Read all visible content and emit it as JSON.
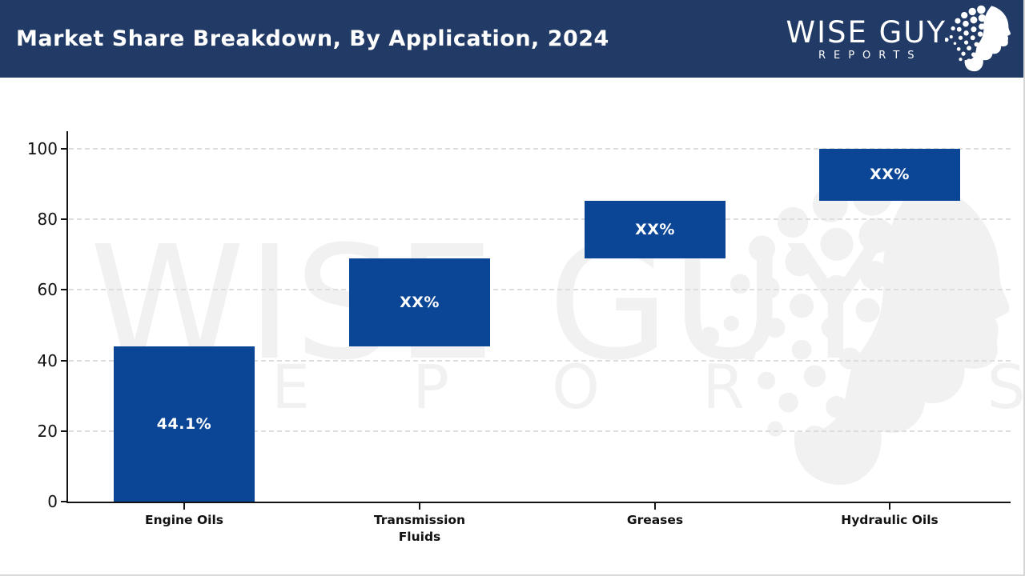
{
  "header": {
    "title": "Market Share Breakdown, By Application, 2024",
    "logo": {
      "line1": "WISE GUY",
      "line2": "REPORTS",
      "face_icon": "dot-face-profile"
    }
  },
  "watermark": {
    "line1": "WISE GUY",
    "line2": "R E P O R T S",
    "face_icon": "dot-face-profile"
  },
  "colors": {
    "header_bg": "#213a66",
    "bar_fill": "#0a4596",
    "bar_label": "#ffffff",
    "grid": "#dedede",
    "axis": "#141414",
    "watermark": "#f1f1f2",
    "page_border": "#d6d6d6"
  },
  "chart_data": {
    "type": "bar",
    "variant": "floating-segment (waterfall-style) percentage breakdown",
    "title": "Market Share Breakdown, By Application, 2024",
    "xlabel": "",
    "ylabel": "",
    "ylim": [
      0,
      100
    ],
    "yticks": [
      0,
      20,
      40,
      60,
      80,
      100
    ],
    "grid": "horizontal dashed",
    "legend": "none",
    "categories": [
      "Engine Oils",
      "Transmission Fluids",
      "Greases",
      "Hydraulic Oils"
    ],
    "segments": [
      {
        "category": "Engine Oils",
        "start": 0,
        "end": 44.1,
        "label": "44.1%"
      },
      {
        "category": "Transmission Fluids",
        "start": 44.1,
        "end": 69,
        "label": "XX%"
      },
      {
        "category": "Greases",
        "start": 69,
        "end": 85.3,
        "label": "XX%"
      },
      {
        "category": "Hydraulic Oils",
        "start": 85.3,
        "end": 100,
        "label": "XX%"
      }
    ]
  }
}
